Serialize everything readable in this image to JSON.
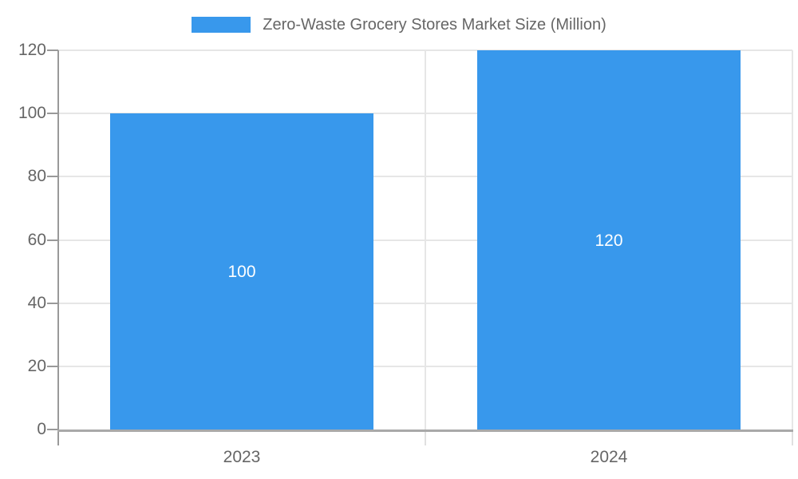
{
  "legend": {
    "label": "Zero-Waste Grocery Stores Market Size (Million)"
  },
  "colors": {
    "bar": "#3898ec",
    "y_axis": "#999999",
    "x_axis": "#a9a9a9",
    "grid": "#e6e6e6",
    "tick": "#999999",
    "boundary_tick": "#e0e0e0",
    "tick_label": "#666666",
    "value_label": "#ffffff",
    "background": "#ffffff"
  },
  "chart_data": {
    "type": "bar",
    "title": "Zero-Waste Grocery Stores Market Size (Million)",
    "categories": [
      "2023",
      "2024"
    ],
    "series": [
      {
        "name": "Zero-Waste Grocery Stores Market Size (Million)",
        "values": [
          100,
          120
        ]
      }
    ],
    "bar_labels": [
      "100",
      "120"
    ],
    "xlabel": "",
    "ylabel": "",
    "ylim": [
      0,
      120
    ],
    "yticks": [
      0,
      20,
      40,
      60,
      80,
      100,
      120
    ],
    "grid": true,
    "legend_position": "top"
  }
}
